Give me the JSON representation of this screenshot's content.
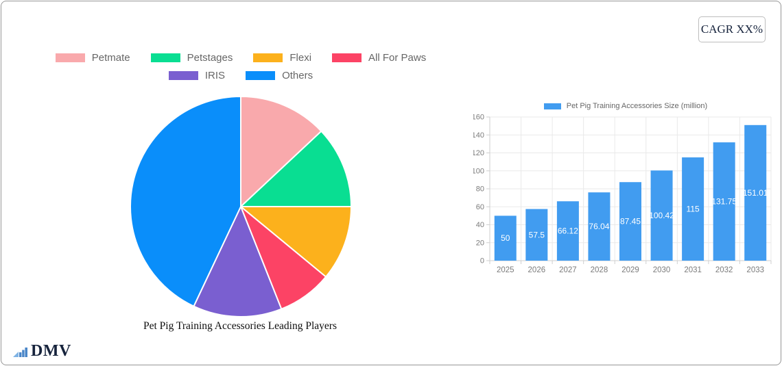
{
  "cagr_box": {
    "label": "CAGR XX%"
  },
  "logo": {
    "text": "DMV"
  },
  "colors": {
    "bar_blue": "#419CF0",
    "grid": "#e9e9e9",
    "axis": "#cfcfcf",
    "tick_text": "#7b7b7b",
    "legend_text": "#666666",
    "value_label": "#ffffff"
  },
  "chart_data": [
    {
      "type": "pie",
      "title": "Pet Pig Training Accessories Leading Players",
      "legend_position": "top",
      "legend_row_split": 4,
      "slices": [
        {
          "label": "Petmate",
          "value": 13,
          "color": "#F9A9AC"
        },
        {
          "label": "Petstages",
          "value": 12,
          "color": "#09DE92"
        },
        {
          "label": "Flexi",
          "value": 11,
          "color": "#FCB11C"
        },
        {
          "label": "All For Paws",
          "value": 8,
          "color": "#FC4365"
        },
        {
          "label": "IRIS",
          "value": 13,
          "color": "#7A5FD0"
        },
        {
          "label": "Others",
          "value": 43,
          "color": "#0A8EFA"
        }
      ]
    },
    {
      "type": "bar",
      "legend": "Pet Pig Training Accessories Size (million)",
      "categories": [
        "2025",
        "2026",
        "2027",
        "2028",
        "2029",
        "2030",
        "2031",
        "2032",
        "2033"
      ],
      "values": [
        50,
        57.5,
        66.12,
        76.04,
        87.45,
        100.42,
        115,
        131.75,
        151.01
      ],
      "value_labels": [
        "50",
        "57.5",
        "66.12",
        "76.04",
        "87.45",
        "100.42",
        "115",
        "131.75",
        "151.01"
      ],
      "ylabel": "",
      "xlabel": "",
      "ylim": [
        0,
        160
      ],
      "ytick_step": 20,
      "grid": true
    }
  ]
}
